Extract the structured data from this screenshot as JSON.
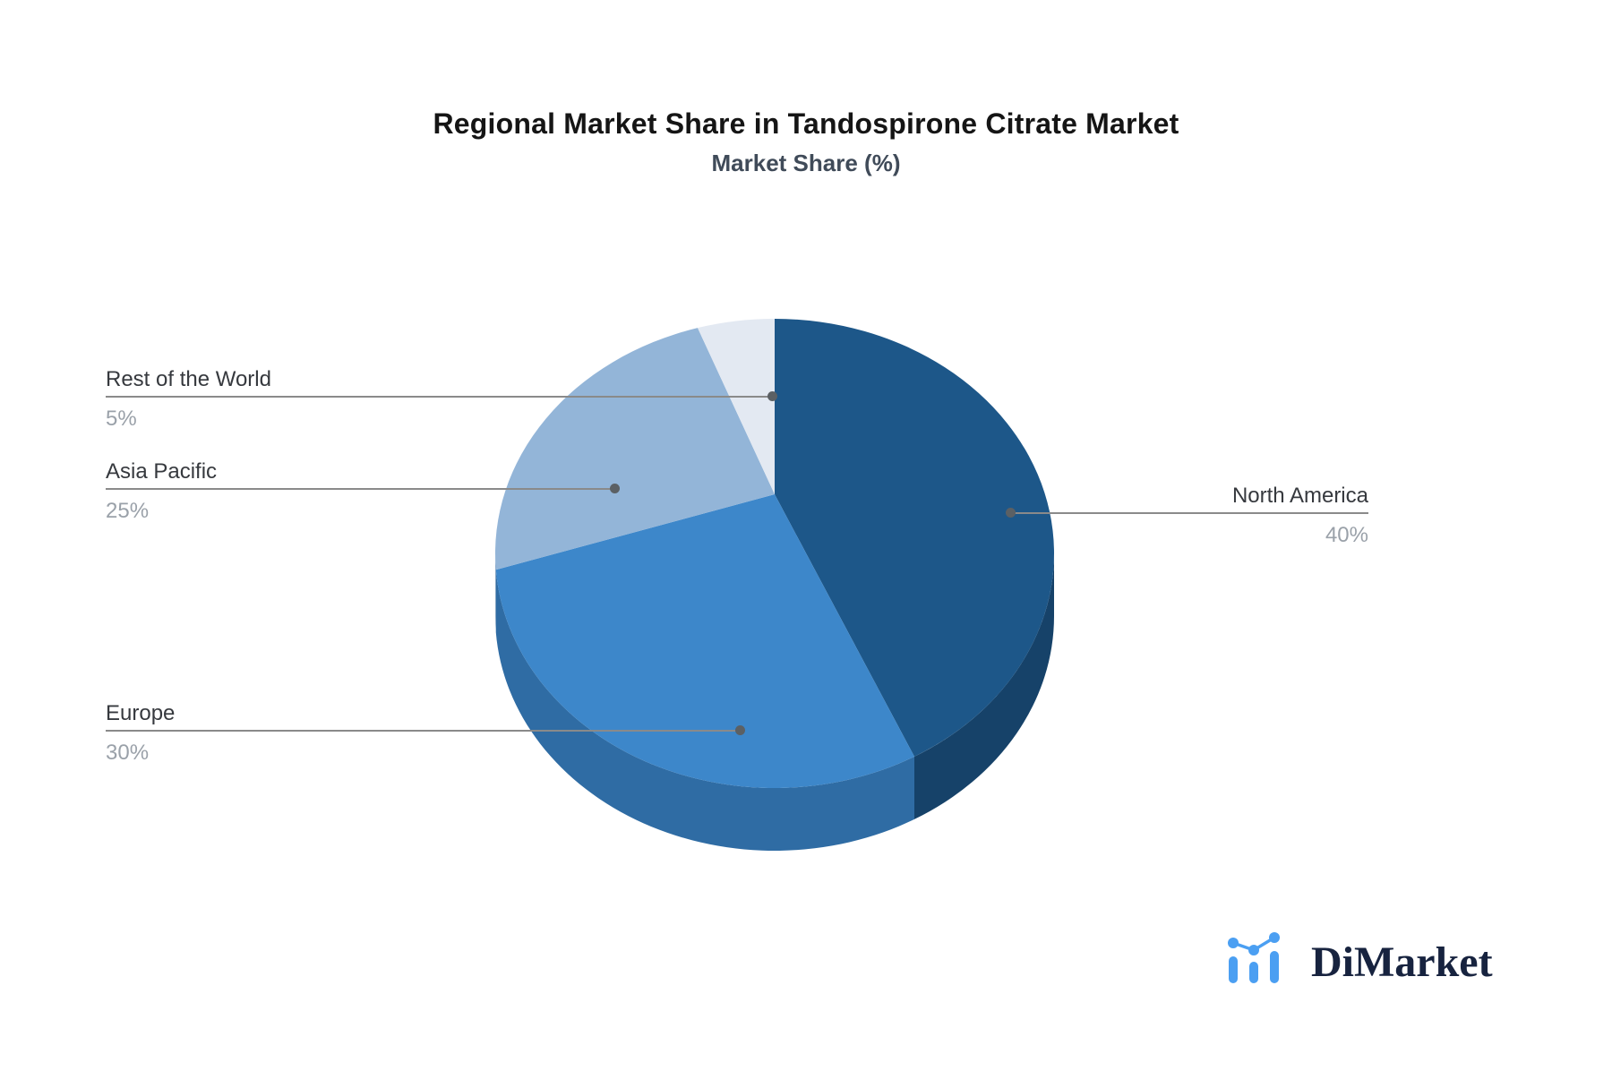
{
  "page": {
    "background": "#ffffff"
  },
  "chart_data": {
    "type": "pie",
    "style": "pie-3d",
    "title": "Regional Market Share in Tandospirone Citrate Market",
    "subtitle": "Market Share (%)",
    "unit": "%",
    "slices": [
      {
        "label": "North America",
        "value": 40,
        "display": "40%",
        "color": "#1d5789",
        "side_color": "#164269"
      },
      {
        "label": "Europe",
        "value": 30,
        "display": "30%",
        "color": "#3d87ca",
        "side_color": "#2f6ca4"
      },
      {
        "label": "Asia Pacific",
        "value": 25,
        "display": "25%",
        "color": "#93b5d8",
        "side_color": "#7f9fc0"
      },
      {
        "label": "Rest of the World",
        "value": 5,
        "display": "5%",
        "color": "#e3e9f2",
        "side_color": "#c8d2e0"
      }
    ],
    "legend_position": "callout-labels",
    "grid": false,
    "labels_style": {
      "name_color": "#36393e",
      "value_color": "#9aa1a9",
      "line_color": "#8a8a8a"
    }
  },
  "branding": {
    "name": "DiMarket",
    "icon": "bar-chart-trend-icon",
    "icon_color": "#4b9ff2",
    "text_color": "#17233f"
  }
}
